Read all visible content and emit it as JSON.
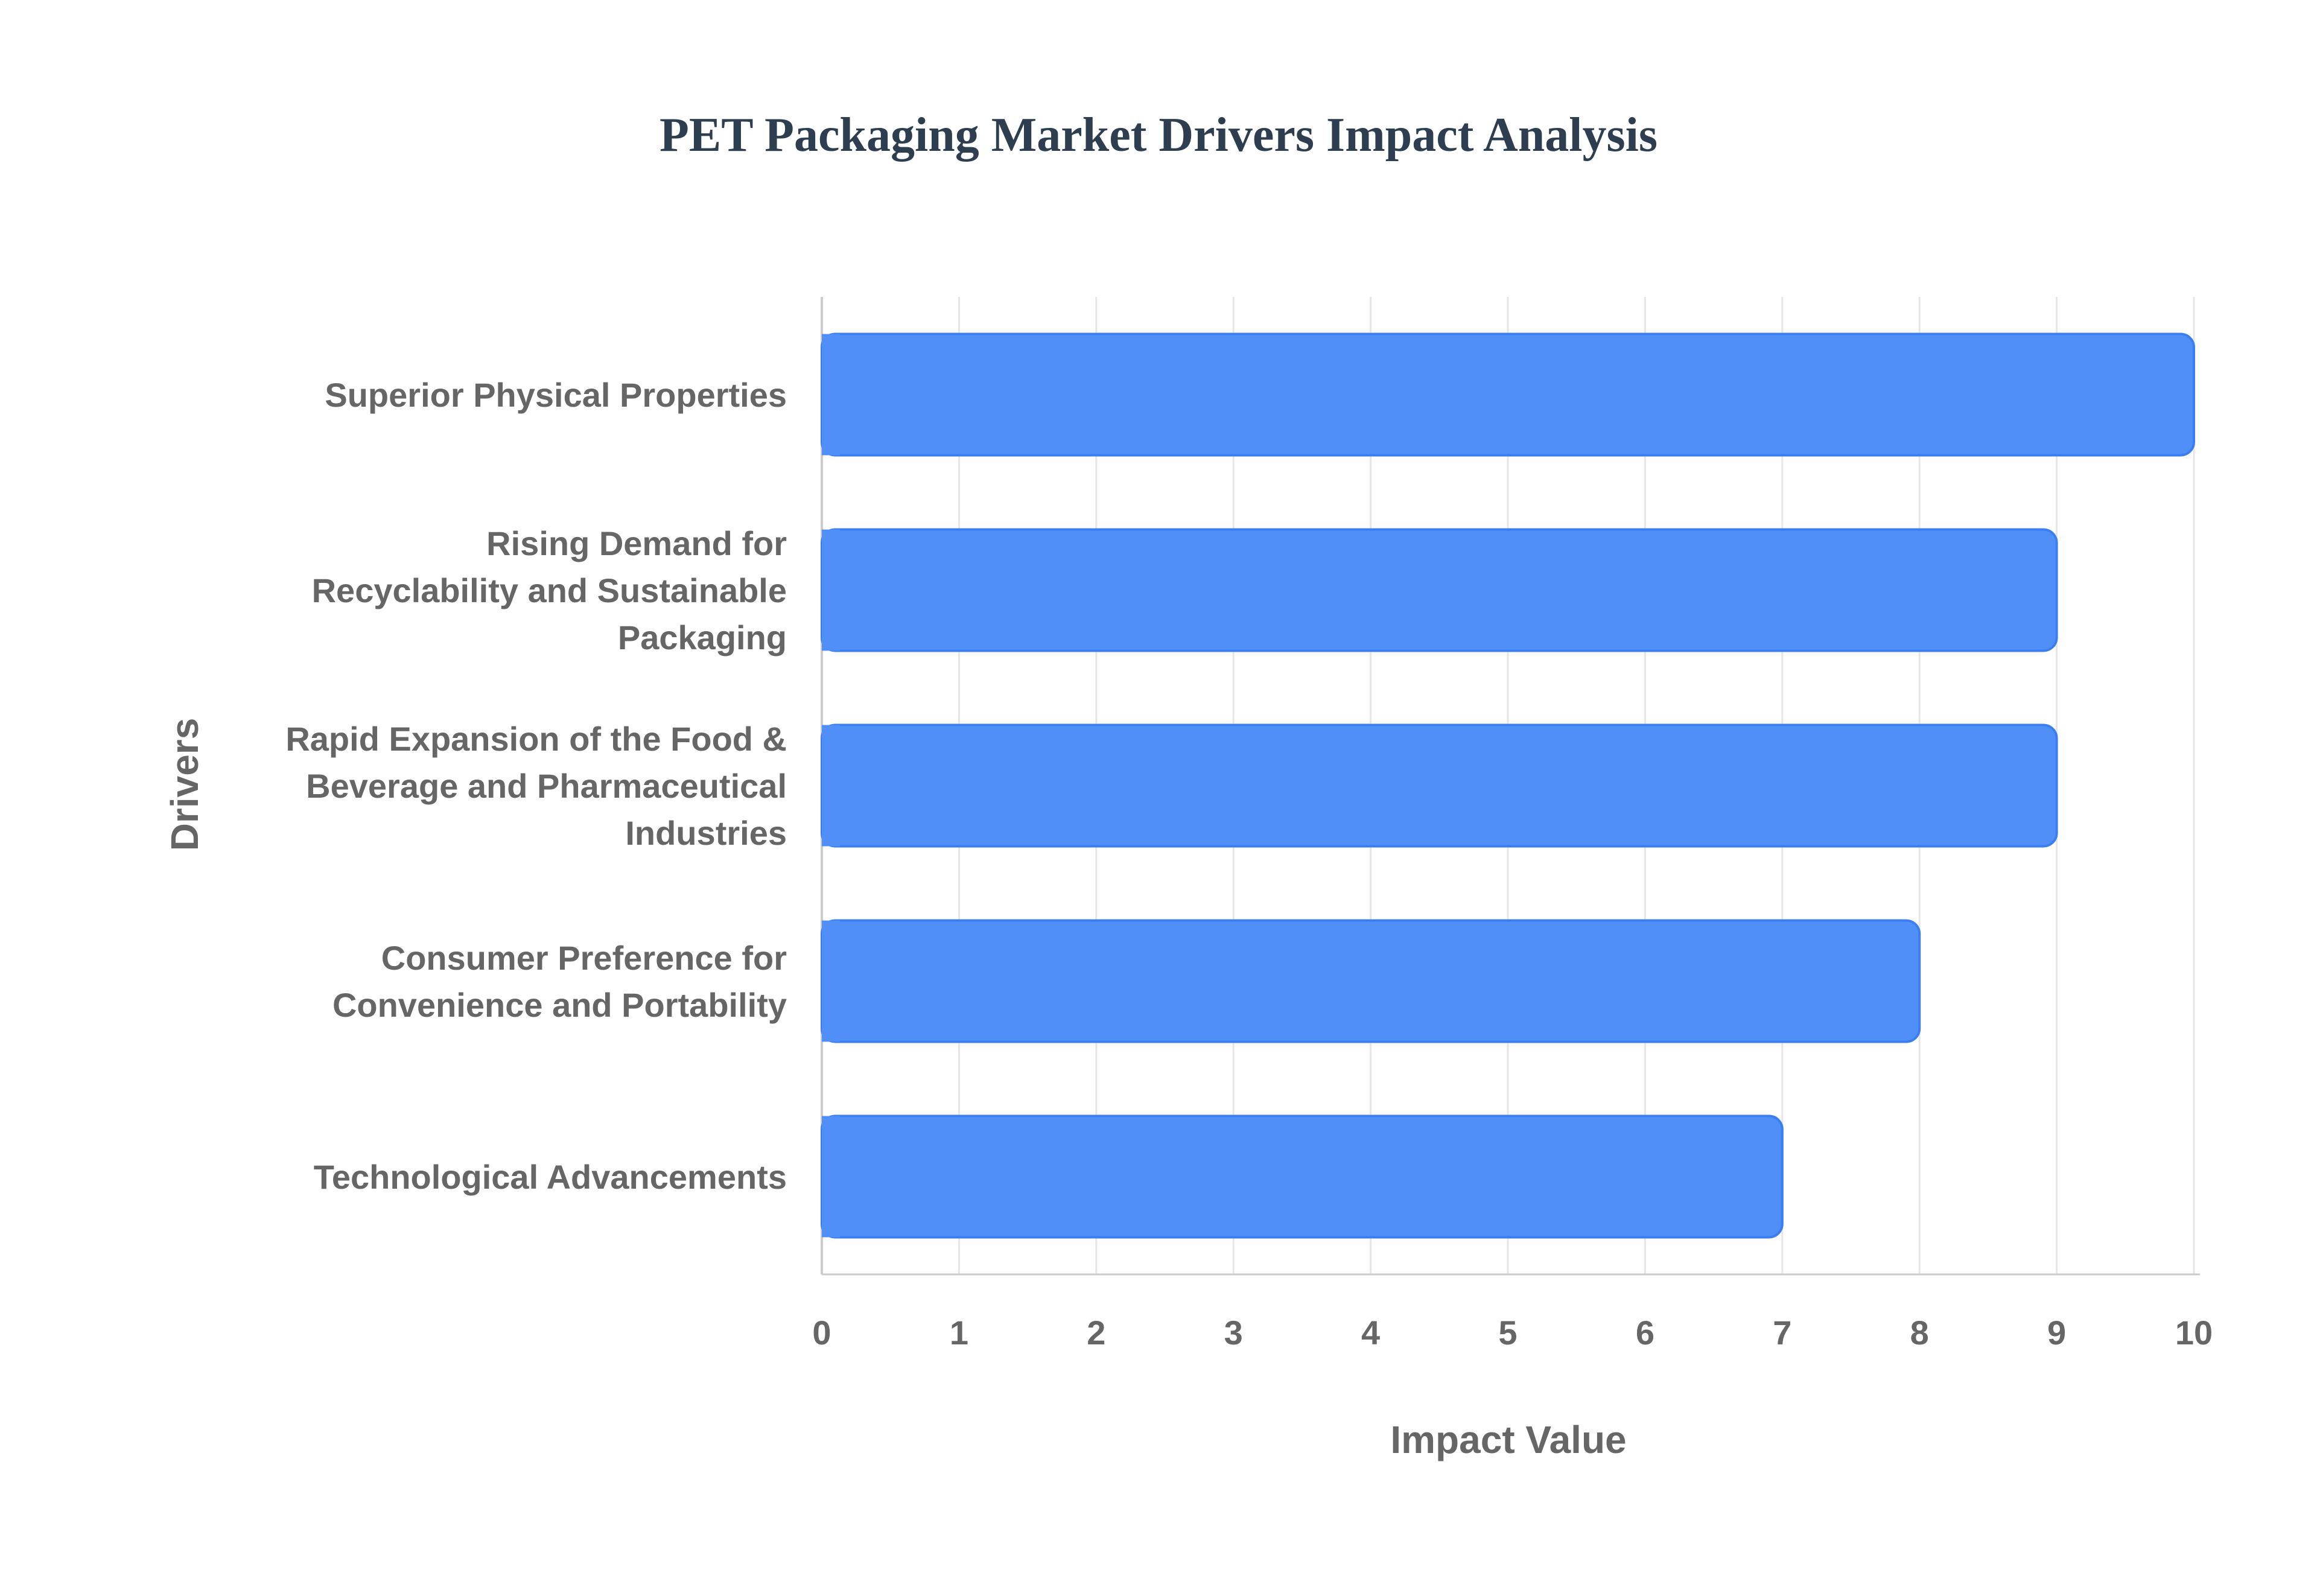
{
  "chart_data": {
    "type": "bar",
    "orientation": "horizontal",
    "title": "PET Packaging Market Drivers Impact Analysis",
    "xlabel": "Impact Value",
    "ylabel": "Drivers",
    "categories": [
      "Superior Physical Properties",
      "Rising Demand for Recyclability and Sustainable Packaging",
      "Rapid Expansion of the Food & Beverage and Pharmaceutical Industries",
      "Consumer Preference for Convenience and Portability",
      "Technological Advancements"
    ],
    "category_label_lines": [
      [
        "Superior Physical Properties"
      ],
      [
        "Rising Demand for",
        "Recyclability and Sustainable",
        "Packaging"
      ],
      [
        "Rapid Expansion of the Food &",
        "Beverage and Pharmaceutical",
        "Industries"
      ],
      [
        "Consumer Preference for",
        "Convenience and Portability"
      ],
      [
        "Technological Advancements"
      ]
    ],
    "values": [
      10,
      9,
      9,
      8,
      7
    ],
    "xlim": [
      0,
      10
    ],
    "xticks": [
      "0",
      "1",
      "2",
      "3",
      "4",
      "5",
      "6",
      "7",
      "8",
      "9",
      "10"
    ],
    "grid": true,
    "legend": "none",
    "colors": {
      "bar_fill": "#4f8ff7",
      "bar_stroke": "#3b7ef0",
      "title": "#2c3e50",
      "axis_text": "#666666",
      "grid": "#e6e6e6",
      "axis_line": "#cccccc"
    }
  }
}
